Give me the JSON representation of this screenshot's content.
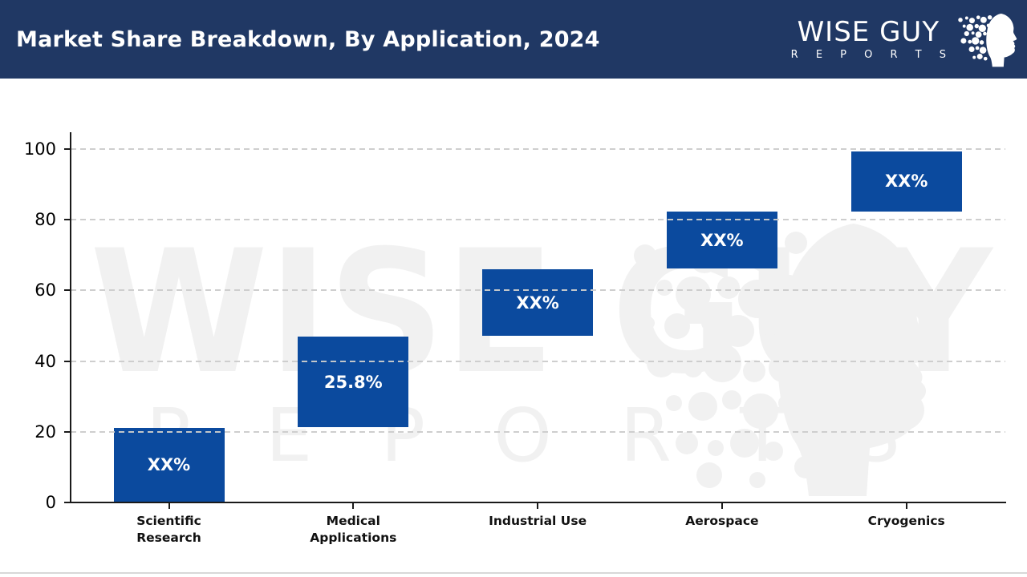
{
  "header": {
    "title": "Market Share Breakdown, By Application, 2024",
    "logo": {
      "name_line": "WISE GUY",
      "reports_line": "R E P O R T S"
    }
  },
  "watermark": {
    "name_line": "WISE GUY",
    "reports_line": "R E P O R T S"
  },
  "colors": {
    "header_bg": "#203864",
    "logo_text": "#ffffff",
    "bar_fill": "#0b4a9e",
    "bar_label": "#ffffff",
    "grid_line": "#cccccc",
    "axis_line": "#1a1a1a",
    "tick_label": "#000000",
    "category_label": "#111111",
    "watermark": "#f1f1f1",
    "footer_line": "#d8d8d8"
  },
  "chart_data": {
    "type": "bar",
    "subtype": "waterfall-floating-bars",
    "title": "Market Share Breakdown, By Application, 2024",
    "categories": [
      "Scientific Research",
      "Medical Applications",
      "Industrial Use",
      "Aerospace",
      "Cryogenics"
    ],
    "category_label_lines": [
      [
        "Scientific",
        "Research"
      ],
      [
        "Medical",
        "Applications"
      ],
      [
        "Industrial Use"
      ],
      [
        "Aerospace"
      ],
      [
        "Cryogenics"
      ]
    ],
    "segments": [
      {
        "category": "Scientific Research",
        "start": 0,
        "end": 21.2,
        "label": "XX%"
      },
      {
        "category": "Medical Applications",
        "start": 21.2,
        "end": 47.0,
        "label": "25.8%"
      },
      {
        "category": "Industrial Use",
        "start": 47.2,
        "end": 65.9,
        "label": "XX%"
      },
      {
        "category": "Aerospace",
        "start": 66.1,
        "end": 82.2,
        "label": "XX%"
      },
      {
        "category": "Cryogenics",
        "start": 82.4,
        "end": 99.4,
        "label": "XX%"
      }
    ],
    "yticks": [
      0,
      20,
      40,
      60,
      80,
      100
    ],
    "ylim": [
      0,
      104.8
    ],
    "xlabel": "",
    "ylabel": "",
    "grid": "horizontal dashed gridlines drawn over bars",
    "legend": "none"
  }
}
